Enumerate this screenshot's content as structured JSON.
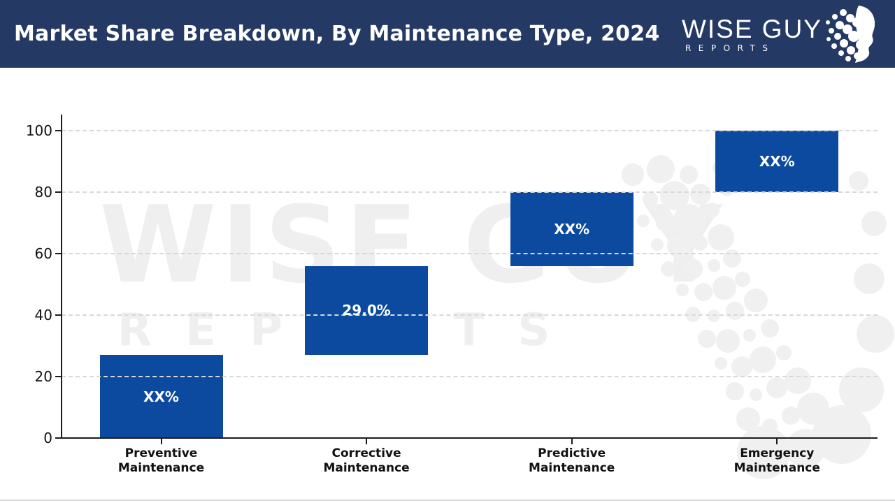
{
  "header": {
    "title": "Market Share Breakdown, By Maintenance Type, 2024",
    "logo": {
      "wordmark": "WISE GUY",
      "subtext": "REPORTS"
    }
  },
  "watermark": {
    "wordmark": "WISE GUY",
    "subtext": "REPORTS"
  },
  "colors": {
    "header_bg": "#243a64",
    "bar": "#0c4aa0",
    "bar_label": "#ffffff",
    "grid": "#d8d8d8",
    "axis": "#1c1c1c",
    "watermark": "#efefef"
  },
  "chart_data": {
    "type": "bar",
    "subtype": "floating-waterfall",
    "title": "Market Share Breakdown, By Maintenance Type, 2024",
    "categories": [
      "Preventive Maintenance",
      "Corrective Maintenance",
      "Predictive Maintenance",
      "Emergency Maintenance"
    ],
    "bars": [
      {
        "category": "Preventive Maintenance",
        "start": 0,
        "end": 27,
        "label": "XX%"
      },
      {
        "category": "Corrective Maintenance",
        "start": 27,
        "end": 56,
        "label": "29.0%"
      },
      {
        "category": "Predictive Maintenance",
        "start": 56,
        "end": 80,
        "label": "XX%"
      },
      {
        "category": "Emergency Maintenance",
        "start": 80,
        "end": 100,
        "label": "XX%"
      }
    ],
    "xlabel": "",
    "ylabel": "",
    "yticks": [
      0,
      20,
      40,
      60,
      80,
      100
    ],
    "ylim": [
      0,
      105
    ],
    "grid": "horizontal-dashed",
    "legend": "none"
  }
}
